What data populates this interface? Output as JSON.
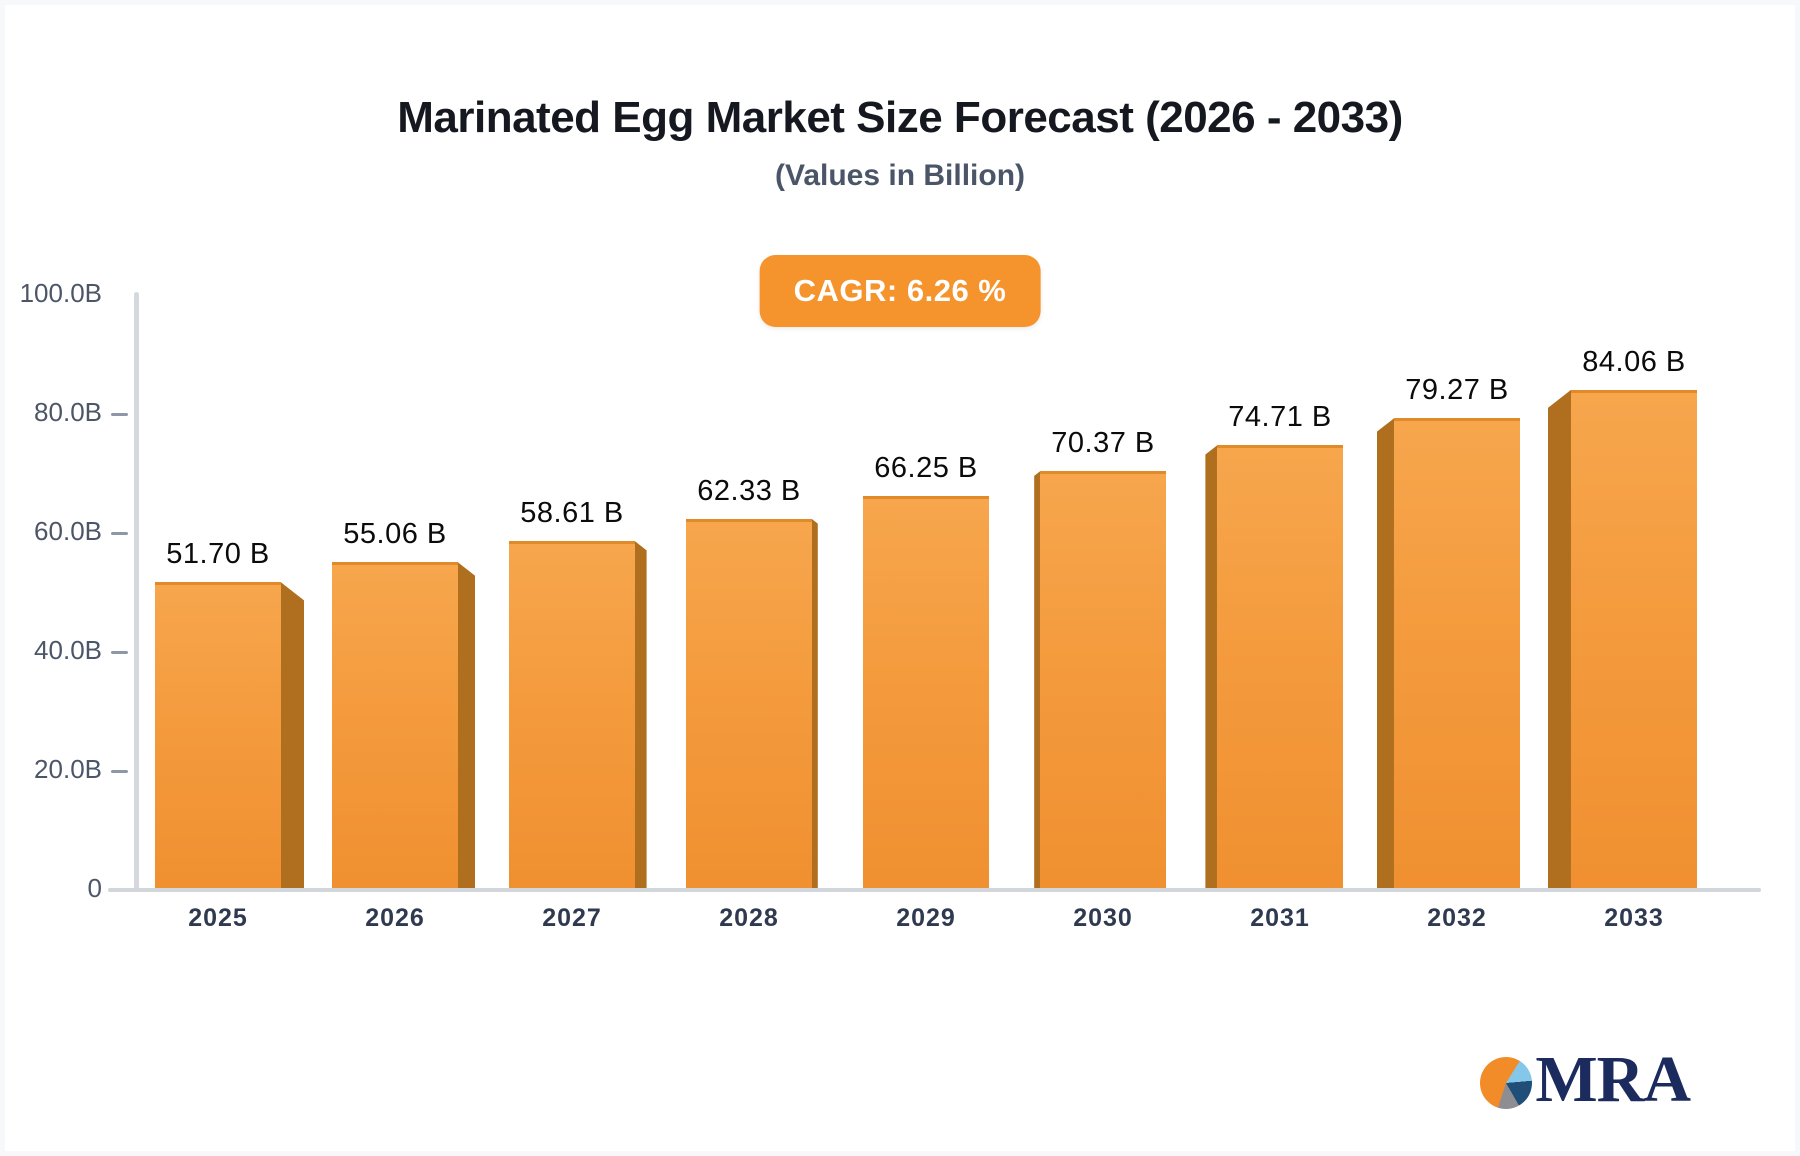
{
  "header": {
    "title": "Marinated Egg Market Size Forecast (2026 - 2033)",
    "subtitle": "(Values in Billion)",
    "cagr_label": "CAGR: 6.26 %"
  },
  "chart_data": {
    "type": "bar",
    "title": "Marinated Egg Market Size Forecast (2026 - 2033)",
    "subtitle": "(Values in Billion)",
    "unit": "Billion",
    "categories": [
      "2025",
      "2026",
      "2027",
      "2028",
      "2029",
      "2030",
      "2031",
      "2032",
      "2033"
    ],
    "values": [
      51.7,
      55.06,
      58.61,
      62.33,
      66.25,
      70.37,
      74.71,
      79.27,
      84.06
    ],
    "bar_labels": [
      "51.70 B",
      "55.06 B",
      "58.61 B",
      "62.33 B",
      "66.25 B",
      "70.37 B",
      "74.71 B",
      "79.27 B",
      "84.06 B"
    ],
    "cagr_percent": "6.26 %",
    "xlabel": "",
    "ylabel": "",
    "ylim": [
      0,
      100
    ],
    "yticks": [
      {
        "value": 0,
        "label": "0"
      },
      {
        "value": 20,
        "label": "20.0B"
      },
      {
        "value": 40,
        "label": "40.0B"
      },
      {
        "value": 60,
        "label": "60.0B"
      },
      {
        "value": 80,
        "label": "80.0B"
      },
      {
        "value": 100,
        "label": "100.0B"
      }
    ],
    "grid": false,
    "legend": "none",
    "colors": {
      "bar_face_top": "#f7a64d",
      "bar_face_bottom": "#f09030",
      "bar_side": "#b06e1f",
      "badge_background": "#f5942d",
      "axis_line": "#d5d9de",
      "tick_text": "#4d5668",
      "year_text": "#2f3a50",
      "value_text": "#0b0b0c"
    }
  },
  "logo": {
    "text": "MRA",
    "pie_icon_colors": {
      "orange": "#f28c28",
      "light_blue": "#85c7e8",
      "dark_blue": "#1f4e79",
      "gray": "#8d8d92"
    },
    "text_color": "#1b2b5e"
  }
}
